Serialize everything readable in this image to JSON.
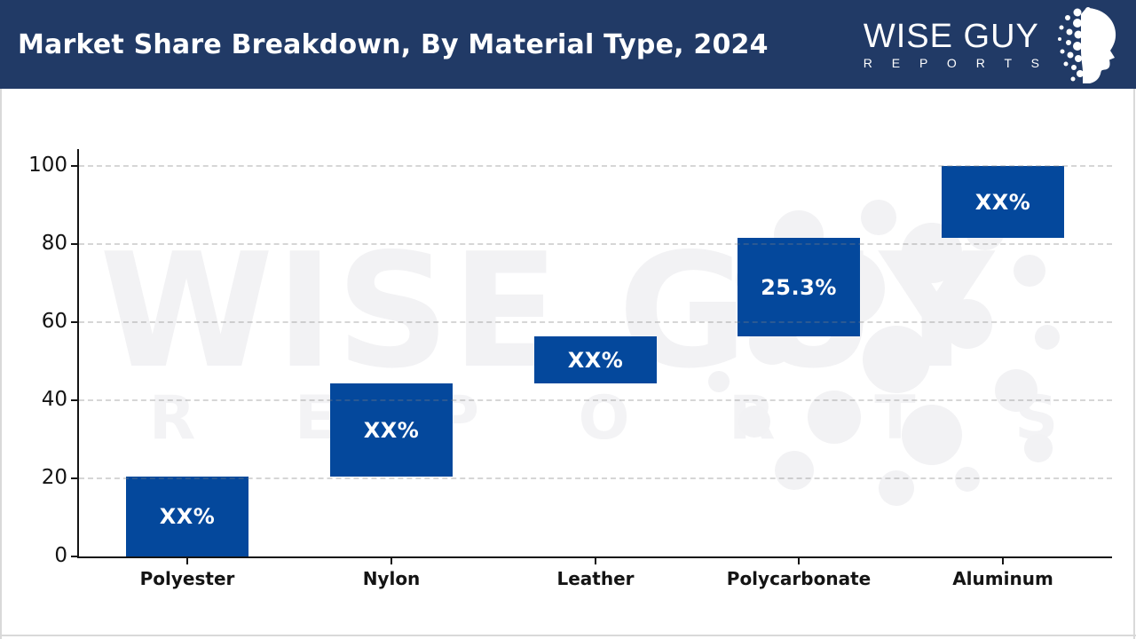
{
  "header": {
    "title": "Market Share Breakdown, By Material Type, 2024",
    "background_color": "#213a66",
    "logo": {
      "primary": "WISE GUY",
      "secondary": "R E P O R T S"
    }
  },
  "watermark": {
    "line1": "WISE GUY",
    "line2": "R E P O R T S"
  },
  "chart_data": {
    "type": "bar",
    "subtype": "waterfall",
    "title": "Market Share Breakdown, By Material Type, 2024",
    "categories": [
      "Polyester",
      "Nylon",
      "Leather",
      "Polycarbonate",
      "Aluminum"
    ],
    "bars": [
      {
        "category": "Polyester",
        "start": 0,
        "end": 20.5,
        "label": "XX%"
      },
      {
        "category": "Nylon",
        "start": 20.5,
        "end": 44.3,
        "label": "XX%"
      },
      {
        "category": "Leather",
        "start": 44.4,
        "end": 56.4,
        "label": "XX%"
      },
      {
        "category": "Polycarbonate",
        "start": 56.4,
        "end": 81.7,
        "label": "25.3%"
      },
      {
        "category": "Aluminum",
        "start": 81.7,
        "end": 100,
        "label": "XX%"
      }
    ],
    "yticks": [
      0,
      20,
      40,
      60,
      80,
      100
    ],
    "ylim": [
      0,
      104
    ],
    "xlabel": "",
    "ylabel": "",
    "bar_color": "#04489c",
    "grid": "horizontal-dashed",
    "legend": "none"
  }
}
